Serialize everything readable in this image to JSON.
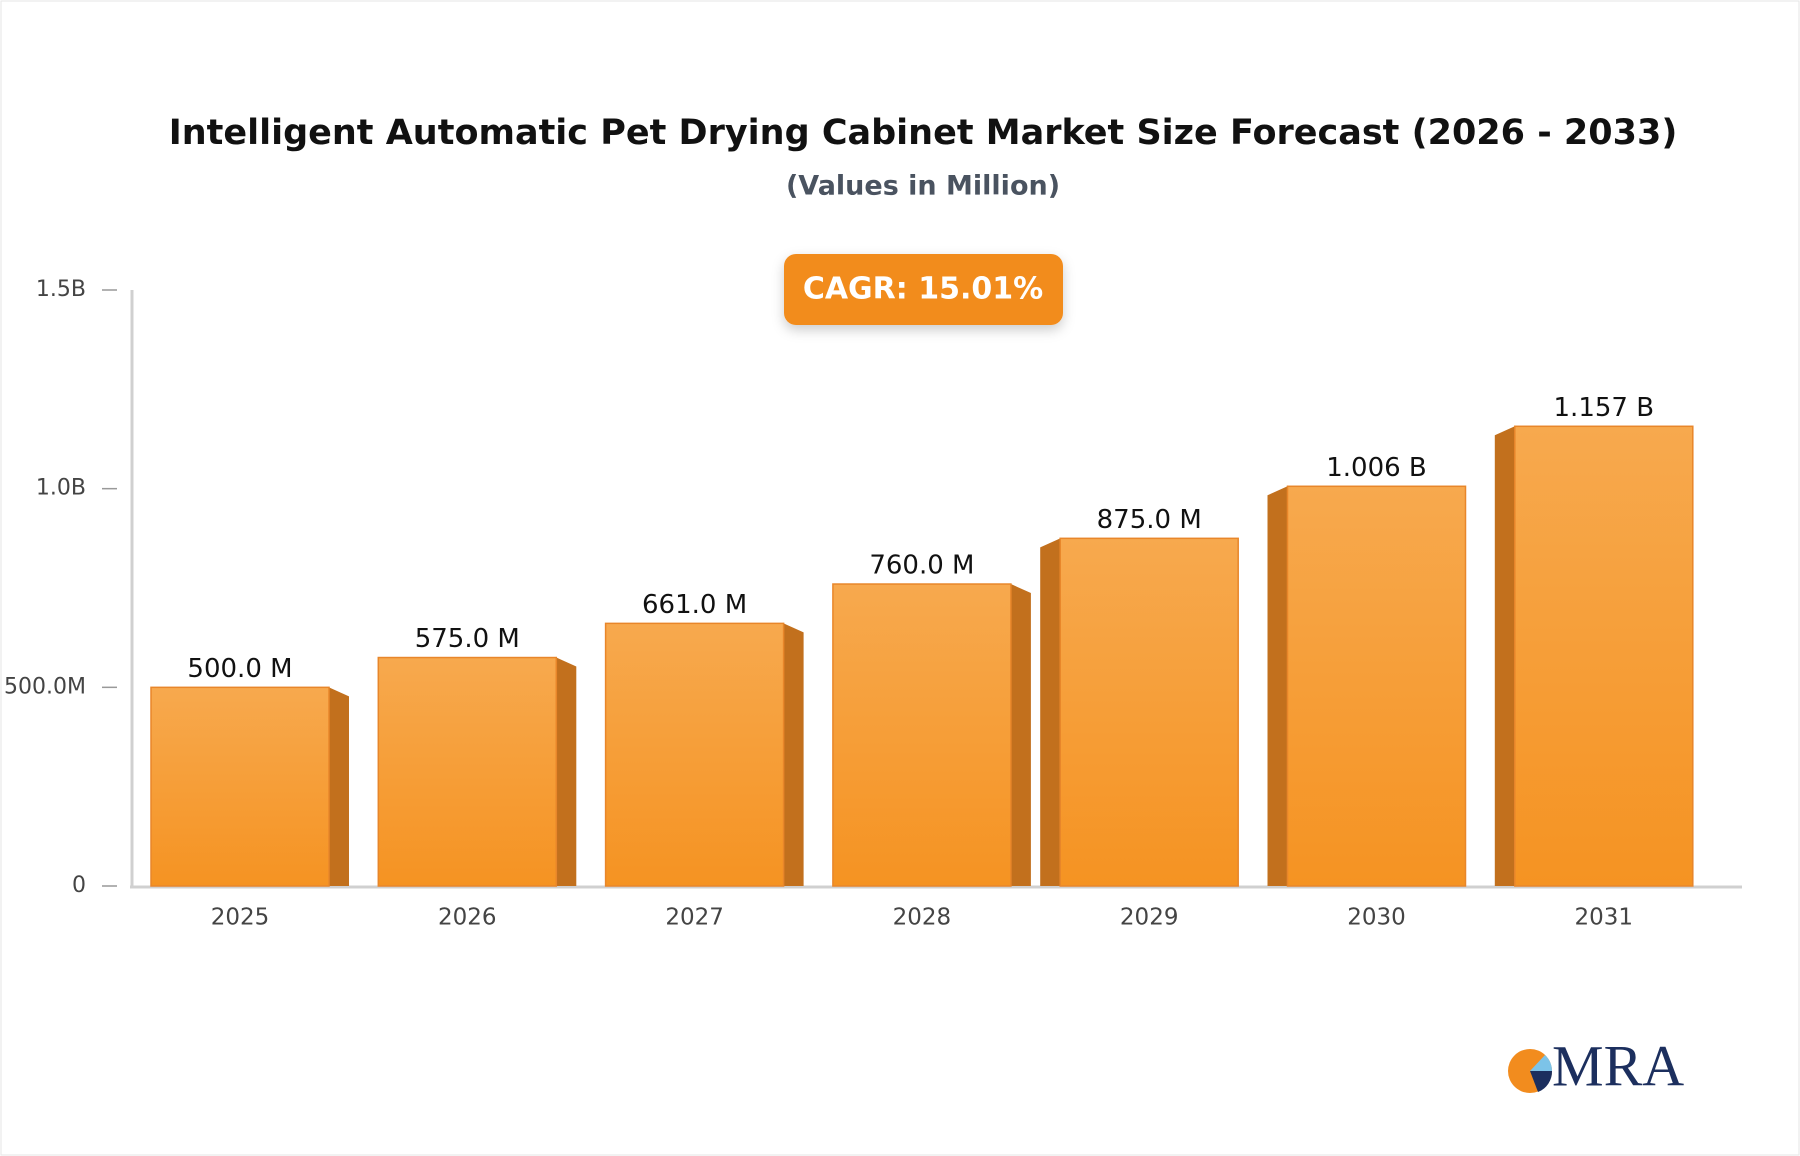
{
  "chart_data": {
    "type": "bar",
    "title": "Intelligent Automatic Pet Drying Cabinet Market Size Forecast (2026 - 2033)",
    "subtitle": "(Values in Million)",
    "annotation": "CAGR: 15.01%",
    "logo": "MRA",
    "categories": [
      "2025",
      "2026",
      "2027",
      "2028",
      "2029",
      "2030",
      "2031"
    ],
    "values": [
      500000000,
      575000000,
      661000000,
      760000000,
      875000000,
      1006000000,
      1157000000
    ],
    "value_labels": [
      "500.0 M",
      "575.0 M",
      "661.0 M",
      "760.0 M",
      "875.0 M",
      "1.006 B",
      "1.157 B"
    ],
    "color": "#f59a30",
    "ylim": [
      0,
      1500000000
    ],
    "yticks": [
      0,
      {
        "value": 500000000,
        "label": "500.0M"
      },
      {
        "value": 1000000000,
        "label": "1.0B"
      },
      {
        "value": 1500000000,
        "label": "1.5B"
      }
    ],
    "grid": false
  }
}
